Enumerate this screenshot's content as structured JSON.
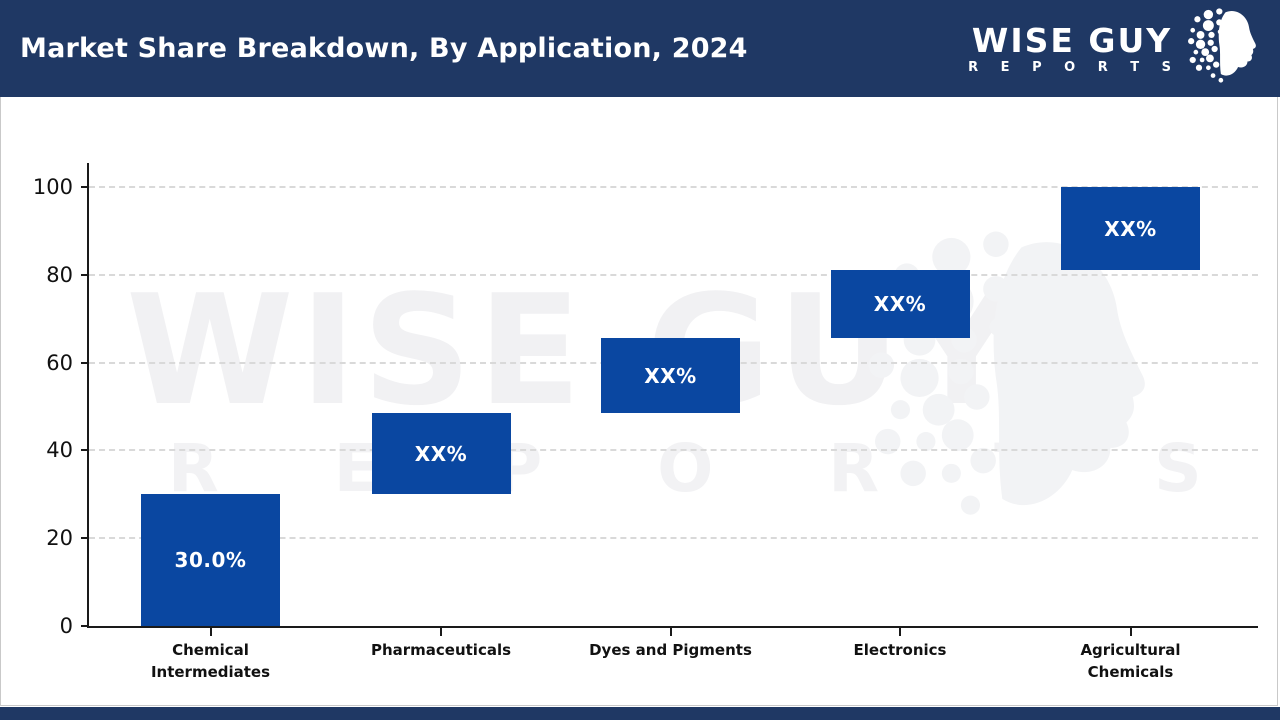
{
  "header": {
    "title": "Market Share Breakdown, By Application, 2024",
    "bg_color": "#1f3864",
    "logo": {
      "line1": "WISE GUY",
      "line2": "R E P O R T S"
    }
  },
  "watermark": {
    "line1": "WISE GUY",
    "line2": "R E P O R T S"
  },
  "chart_data": {
    "type": "bar",
    "subtype": "waterfall",
    "title": "Market Share Breakdown, By Application, 2024",
    "categories": [
      "Chemical Intermediates",
      "Pharmaceuticals",
      "Dyes and Pigments",
      "Electronics",
      "Agricultural Chemicals"
    ],
    "category_lines": [
      [
        "Chemical",
        "Intermediates"
      ],
      [
        "Pharmaceuticals"
      ],
      [
        "Dyes and Pigments"
      ],
      [
        "Electronics"
      ],
      [
        "Agricultural",
        "Chemicals"
      ]
    ],
    "segments": [
      {
        "start": 0,
        "end": 30,
        "label": "30.0%"
      },
      {
        "start": 30,
        "end": 48.5,
        "label": "XX%"
      },
      {
        "start": 48.5,
        "end": 65.5,
        "label": "XX%"
      },
      {
        "start": 65.5,
        "end": 81,
        "label": "XX%"
      },
      {
        "start": 81,
        "end": 100,
        "label": "XX%"
      }
    ],
    "ylim": [
      0,
      100
    ],
    "yticks": [
      0,
      20,
      40,
      60,
      80,
      100
    ],
    "xlabel": "",
    "ylabel": "",
    "bar_color": "#0a47a1",
    "grid": "horizontal-dashed",
    "legend": "none"
  }
}
